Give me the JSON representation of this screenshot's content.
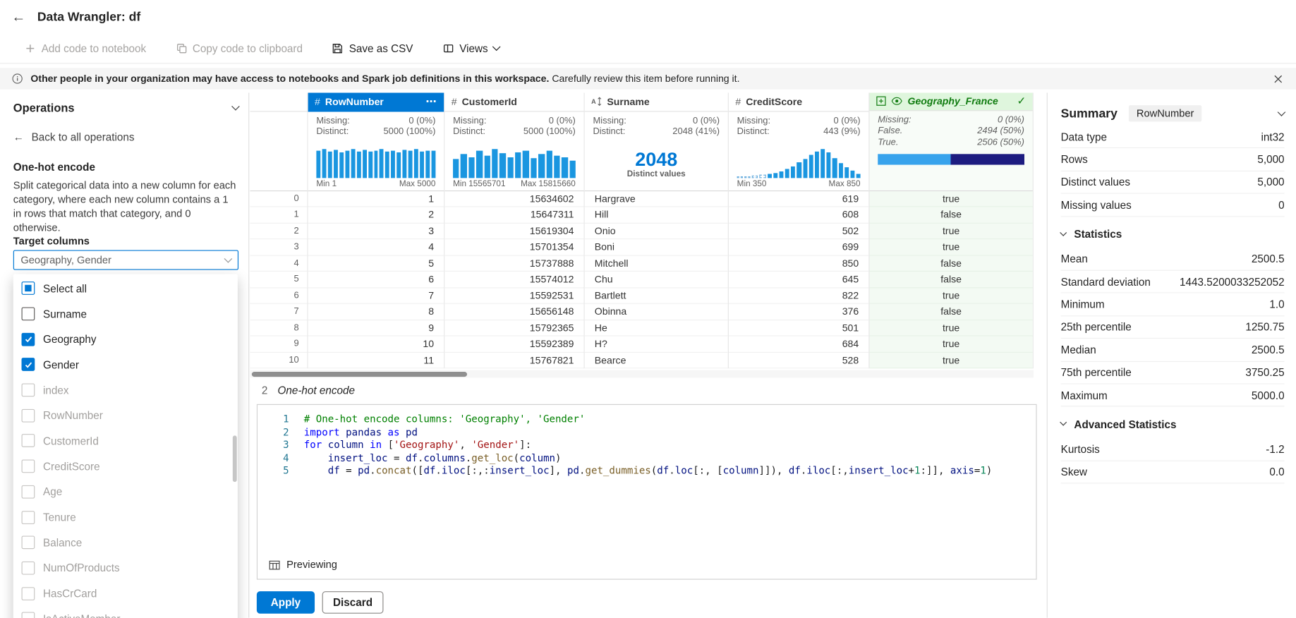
{
  "app": {
    "title": "Data Wrangler: df"
  },
  "toolbar": {
    "add_code_label": "Add code to notebook",
    "copy_code_label": "Copy code to clipboard",
    "save_csv_label": "Save as CSV",
    "views_label": "Views"
  },
  "banner": {
    "message_bold": "Other people in your organization may have access to notebooks and Spark job definitions in this workspace.",
    "message_rest": "Carefully review this item before running it."
  },
  "operations": {
    "title": "Operations",
    "back_label": "Back to all operations",
    "op_name": "One-hot encode",
    "op_desc": "Split categorical data into a new column for each category, where each new column contains a 1 in rows that match that category, and 0 otherwise.",
    "target_label": "Target columns",
    "combobox_value": "Geography, Gender",
    "dropdown": [
      {
        "label": "Select all",
        "state": "indeterminate",
        "disabled": false
      },
      {
        "label": "Surname",
        "state": "unchecked",
        "disabled": false
      },
      {
        "label": "Geography",
        "state": "checked",
        "disabled": false
      },
      {
        "label": "Gender",
        "state": "checked",
        "disabled": false
      },
      {
        "label": "index",
        "state": "unchecked",
        "disabled": true
      },
      {
        "label": "RowNumber",
        "state": "unchecked",
        "disabled": true
      },
      {
        "label": "CustomerId",
        "state": "unchecked",
        "disabled": true
      },
      {
        "label": "CreditScore",
        "state": "unchecked",
        "disabled": true
      },
      {
        "label": "Age",
        "state": "unchecked",
        "disabled": true
      },
      {
        "label": "Tenure",
        "state": "unchecked",
        "disabled": true
      },
      {
        "label": "Balance",
        "state": "unchecked",
        "disabled": true
      },
      {
        "label": "NumOfProducts",
        "state": "unchecked",
        "disabled": true
      },
      {
        "label": "HasCrCard",
        "state": "unchecked",
        "disabled": true
      },
      {
        "label": "IsActiveMember",
        "state": "unchecked",
        "disabled": true
      }
    ]
  },
  "grid": {
    "columns": [
      {
        "header": "RowNumber",
        "selected": true,
        "stats": [
          {
            "label": "Missing:",
            "value": "0 (0%)"
          },
          {
            "label": "Distinct:",
            "value": "5000 (100%)"
          }
        ],
        "hist": [
          95,
          100,
          92,
          97,
          90,
          96,
          99,
          93,
          97,
          91,
          95,
          100,
          93,
          96,
          90,
          97,
          94,
          99,
          92,
          96,
          94
        ],
        "hist_dashed": 0,
        "min": "Min 1",
        "max": "Max 5000"
      },
      {
        "header": "CustomerId",
        "stats": [
          {
            "label": "Missing:",
            "value": "0 (0%)"
          },
          {
            "label": "Distinct:",
            "value": "5000 (100%)"
          }
        ],
        "hist": [
          66,
          84,
          72,
          94,
          79,
          100,
          85,
          73,
          90,
          95,
          69,
          84,
          94,
          78,
          72,
          60
        ],
        "hist_dashed": 0,
        "min": "Min 15565701",
        "max": "Max 15815660"
      },
      {
        "header": "Surname",
        "stats": [
          {
            "label": "Missing:",
            "value": "0 (0%)"
          },
          {
            "label": "Distinct:",
            "value": "2048 (41%)"
          }
        ],
        "distinct_value": "2048",
        "distinct_label": "Distinct values"
      },
      {
        "header": "CreditScore",
        "stats": [
          {
            "label": "Missing:",
            "value": "0 (0%)"
          },
          {
            "label": "Distinct:",
            "value": "443 (9%)"
          }
        ],
        "hist": [
          5,
          7,
          9,
          12,
          15,
          19,
          25,
          32,
          42,
          54,
          66,
          80,
          93,
          100,
          88,
          70,
          52,
          38,
          26,
          15
        ],
        "hist_dashed": 4,
        "min": "Min 350",
        "max": "Max 850"
      },
      {
        "header": "Geography_France",
        "new_column": true,
        "stats": [
          {
            "label": "Missing:",
            "value": "0 (0%)"
          },
          {
            "label": "False.",
            "value": "2494 (50%)"
          },
          {
            "label": "True.",
            "value": "2506 (50%)"
          }
        ],
        "segments": [
          {
            "label": "False",
            "pct": 49.88,
            "color": "#38a3ec"
          },
          {
            "label": "True",
            "pct": 50.12,
            "color": "#1d1c80"
          }
        ]
      }
    ],
    "rows": [
      {
        "idx": "0",
        "RowNumber": "1",
        "CustomerId": "15634602",
        "Surname": "Hargrave",
        "CreditScore": "619",
        "Geography_France": "true"
      },
      {
        "idx": "1",
        "RowNumber": "2",
        "CustomerId": "15647311",
        "Surname": "Hill",
        "CreditScore": "608",
        "Geography_France": "false"
      },
      {
        "idx": "2",
        "RowNumber": "3",
        "CustomerId": "15619304",
        "Surname": "Onio",
        "CreditScore": "502",
        "Geography_France": "true"
      },
      {
        "idx": "3",
        "RowNumber": "4",
        "CustomerId": "15701354",
        "Surname": "Boni",
        "CreditScore": "699",
        "Geography_France": "true"
      },
      {
        "idx": "4",
        "RowNumber": "5",
        "CustomerId": "15737888",
        "Surname": "Mitchell",
        "CreditScore": "850",
        "Geography_France": "false"
      },
      {
        "idx": "5",
        "RowNumber": "6",
        "CustomerId": "15574012",
        "Surname": "Chu",
        "CreditScore": "645",
        "Geography_France": "false"
      },
      {
        "idx": "6",
        "RowNumber": "7",
        "CustomerId": "15592531",
        "Surname": "Bartlett",
        "CreditScore": "822",
        "Geography_France": "true"
      },
      {
        "idx": "7",
        "RowNumber": "8",
        "CustomerId": "15656148",
        "Surname": "Obinna",
        "CreditScore": "376",
        "Geography_France": "false"
      },
      {
        "idx": "8",
        "RowNumber": "9",
        "CustomerId": "15792365",
        "Surname": "He",
        "CreditScore": "501",
        "Geography_France": "true"
      },
      {
        "idx": "9",
        "RowNumber": "10",
        "CustomerId": "15592389",
        "Surname": "H?",
        "CreditScore": "684",
        "Geography_France": "true"
      },
      {
        "idx": "10",
        "RowNumber": "11",
        "CustomerId": "15767821",
        "Surname": "Bearce",
        "CreditScore": "528",
        "Geography_France": "true"
      }
    ]
  },
  "code_panel": {
    "step_number": "2",
    "step_name": "One-hot encode",
    "previewing_label": "Previewing",
    "apply_label": "Apply",
    "discard_label": "Discard",
    "lines": [
      [
        [
          "com",
          "# One-hot encode columns: 'Geography', 'Gender'"
        ]
      ],
      [
        [
          "kw",
          "import"
        ],
        [
          "o",
          " "
        ],
        [
          "v",
          "pandas"
        ],
        [
          "o",
          " "
        ],
        [
          "kw",
          "as"
        ],
        [
          "o",
          " "
        ],
        [
          "v",
          "pd"
        ]
      ],
      [
        [
          "kw",
          "for"
        ],
        [
          "o",
          " "
        ],
        [
          "v",
          "column"
        ],
        [
          "o",
          " "
        ],
        [
          "kw",
          "in"
        ],
        [
          "o",
          " ["
        ],
        [
          "str",
          "'Geography'"
        ],
        [
          "o",
          ", "
        ],
        [
          "str",
          "'Gender'"
        ],
        [
          "o",
          "]:"
        ]
      ],
      [
        [
          "o",
          "    "
        ],
        [
          "v",
          "insert_loc"
        ],
        [
          "o",
          " = "
        ],
        [
          "v",
          "df"
        ],
        [
          "o",
          "."
        ],
        [
          "v",
          "columns"
        ],
        [
          "o",
          "."
        ],
        [
          "fn",
          "get_loc"
        ],
        [
          "o",
          "("
        ],
        [
          "v",
          "column"
        ],
        [
          "o",
          ")"
        ]
      ],
      [
        [
          "o",
          "    "
        ],
        [
          "v",
          "df"
        ],
        [
          "o",
          " = "
        ],
        [
          "v",
          "pd"
        ],
        [
          "o",
          "."
        ],
        [
          "fn",
          "concat"
        ],
        [
          "o",
          "(["
        ],
        [
          "v",
          "df"
        ],
        [
          "o",
          "."
        ],
        [
          "v",
          "iloc"
        ],
        [
          "o",
          "[:,:"
        ],
        [
          "v",
          "insert_loc"
        ],
        [
          "o",
          "], "
        ],
        [
          "v",
          "pd"
        ],
        [
          "o",
          "."
        ],
        [
          "fn",
          "get_dummies"
        ],
        [
          "o",
          "("
        ],
        [
          "v",
          "df"
        ],
        [
          "o",
          "."
        ],
        [
          "v",
          "loc"
        ],
        [
          "o",
          "[:, ["
        ],
        [
          "v",
          "column"
        ],
        [
          "o",
          "]]), "
        ],
        [
          "v",
          "df"
        ],
        [
          "o",
          "."
        ],
        [
          "v",
          "iloc"
        ],
        [
          "o",
          "[:,"
        ],
        [
          "v",
          "insert_loc"
        ],
        [
          "o",
          "+"
        ],
        [
          "num",
          "1"
        ],
        [
          "o",
          ":]], "
        ],
        [
          "v",
          "axis"
        ],
        [
          "o",
          "="
        ],
        [
          "num",
          "1"
        ],
        [
          "o",
          ")"
        ]
      ]
    ]
  },
  "summary": {
    "title": "Summary",
    "badge": "RowNumber",
    "overview": [
      [
        "Data type",
        "int32"
      ],
      [
        "Rows",
        "5,000"
      ],
      [
        "Distinct values",
        "5,000"
      ],
      [
        "Missing values",
        "0"
      ]
    ],
    "statistics_label": "Statistics",
    "statistics": [
      [
        "Mean",
        "2500.5"
      ],
      [
        "Standard deviation",
        "1443.5200033252052"
      ],
      [
        "Minimum",
        "1.0"
      ],
      [
        "25th percentile",
        "1250.75"
      ],
      [
        "Median",
        "2500.5"
      ],
      [
        "75th percentile",
        "3750.25"
      ],
      [
        "Maximum",
        "5000.0"
      ]
    ],
    "advanced_label": "Advanced Statistics",
    "advanced": [
      [
        "Kurtosis",
        "-1.2"
      ],
      [
        "Skew",
        "0.0"
      ]
    ]
  },
  "colors": {
    "accent": "#0078d4",
    "hist_bar": "#1a96e0",
    "new_green": "#107c10",
    "new_header_bg": "#dff6dd",
    "new_cell_bg": "#f3faf3",
    "bool_false": "#38a3ec",
    "bool_true": "#1d1c80"
  }
}
